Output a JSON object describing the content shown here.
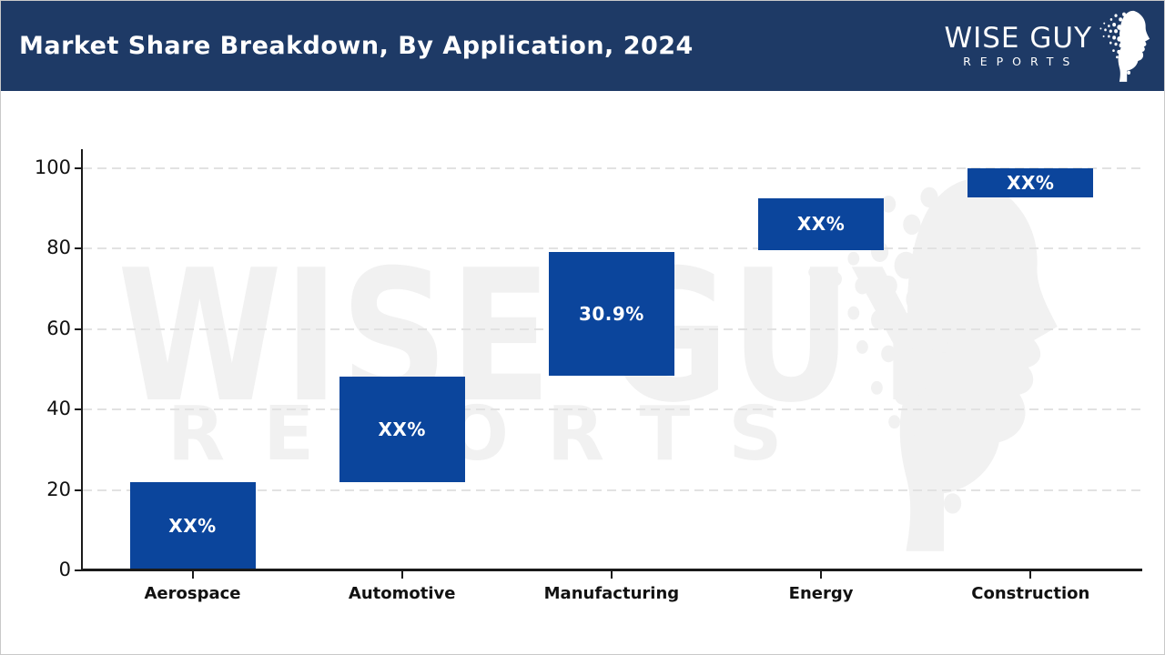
{
  "header": {
    "title": "Market Share Breakdown, By Application, 2024",
    "logo": {
      "wordmark": "WISE GUY",
      "subtitle": "REPORTS"
    }
  },
  "watermark": {
    "line1": "WISE GUY",
    "line2": "REPORTS"
  },
  "colors": {
    "header_bg": "#1e3a66",
    "bar": "#0b459c",
    "grid": "#e2e2e2",
    "axis": "#1a1a1a",
    "bar_label_text": "#ffffff",
    "watermark": "#f1f1f1"
  },
  "chart_data": {
    "type": "bar",
    "subtype": "waterfall",
    "title": "Market Share Breakdown, By Application, 2024",
    "categories": [
      "Aerospace",
      "Automotive",
      "Manufacturing",
      "Energy",
      "Construction"
    ],
    "segments": [
      {
        "category": "Aerospace",
        "start": 0,
        "end": 22.0,
        "label": "XX%"
      },
      {
        "category": "Automotive",
        "start": 22.0,
        "end": 48.3,
        "label": "XX%"
      },
      {
        "category": "Manufacturing",
        "start": 48.3,
        "end": 79.2,
        "label": "30.9%"
      },
      {
        "category": "Energy",
        "start": 79.7,
        "end": 92.6,
        "label": "XX%"
      },
      {
        "category": "Construction",
        "start": 92.7,
        "end": 100,
        "label": "XX%"
      }
    ],
    "yticks": [
      0,
      20,
      40,
      60,
      80,
      100
    ],
    "ylim": [
      0,
      105
    ],
    "xlabel": "",
    "ylabel": "",
    "grid": "horizontal-dashed"
  }
}
